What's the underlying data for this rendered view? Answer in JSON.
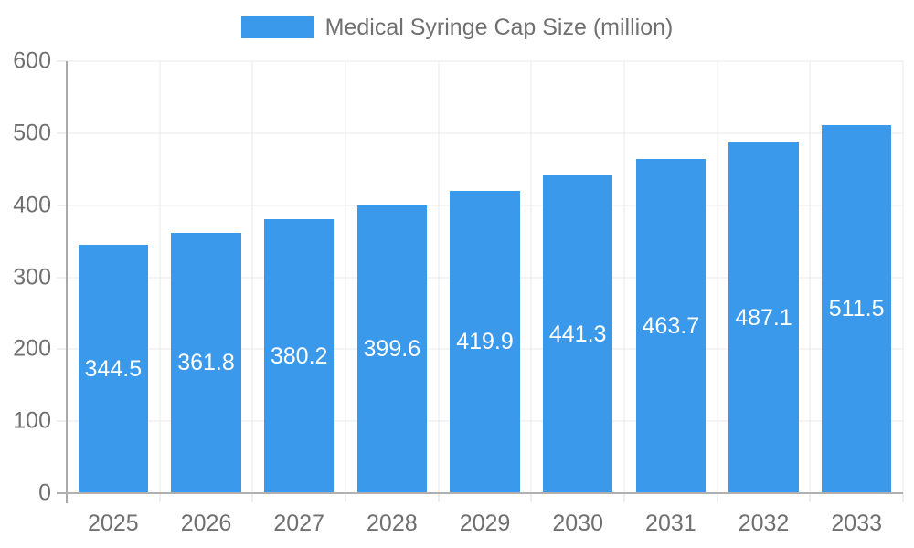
{
  "colors": {
    "bar": "#3b99eb",
    "axis": "#aaaaaa",
    "grid": "#e8e8e8",
    "label_text": "#707070",
    "value_label_text": "#ffffff"
  },
  "chart_data": {
    "type": "bar",
    "title": "Medical Syringe Cap Size (million)",
    "categories": [
      "2025",
      "2026",
      "2027",
      "2028",
      "2029",
      "2030",
      "2031",
      "2032",
      "2033"
    ],
    "values": [
      344.5,
      361.8,
      380.2,
      399.6,
      419.9,
      441.3,
      463.7,
      487.1,
      511.5
    ],
    "xlabel": "",
    "ylabel": "",
    "ylim": [
      0,
      600
    ],
    "yticks": [
      0,
      100,
      200,
      300,
      400,
      500,
      600
    ],
    "grid": true,
    "legend_position": "top",
    "value_label_position": "inside-center"
  }
}
